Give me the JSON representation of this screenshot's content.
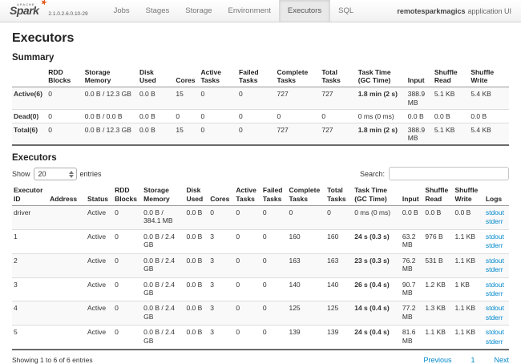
{
  "navbar": {
    "logo": {
      "apache": "APACHE",
      "name": "Spark",
      "version": "2.1.0.2.6.0.10-29"
    },
    "tabs": [
      {
        "label": "Jobs",
        "active": false
      },
      {
        "label": "Stages",
        "active": false
      },
      {
        "label": "Storage",
        "active": false
      },
      {
        "label": "Environment",
        "active": false
      },
      {
        "label": "Executors",
        "active": true
      },
      {
        "label": "SQL",
        "active": false
      }
    ],
    "app_name": "remotesparkmagics",
    "app_suffix": "application UI"
  },
  "page_title": "Executors",
  "summary": {
    "heading": "Summary",
    "columns": [
      "",
      "RDD Blocks",
      "Storage Memory",
      "Disk Used",
      "Cores",
      "Active Tasks",
      "Failed Tasks",
      "Complete Tasks",
      "Total Tasks",
      "Task Time (GC Time)",
      "Input",
      "Shuffle Read",
      "Shuffle Write"
    ],
    "rows": [
      {
        "label": "Active(6)",
        "cells": [
          "0",
          "0.0 B / 12.3 GB",
          "0.0 B",
          "15",
          "0",
          "0",
          "727",
          "727",
          "1.8 min (2 s)",
          "388.9 MB",
          "5.1 KB",
          "5.4 KB"
        ],
        "time_bold": true
      },
      {
        "label": "Dead(0)",
        "cells": [
          "0",
          "0.0 B / 0.0 B",
          "0.0 B",
          "0",
          "0",
          "0",
          "0",
          "0",
          "0 ms (0 ms)",
          "0.0 B",
          "0.0 B",
          "0.0 B"
        ],
        "time_bold": false
      },
      {
        "label": "Total(6)",
        "cells": [
          "0",
          "0.0 B / 12.3 GB",
          "0.0 B",
          "15",
          "0",
          "0",
          "727",
          "727",
          "1.8 min (2 s)",
          "388.9 MB",
          "5.1 KB",
          "5.4 KB"
        ],
        "time_bold": true
      }
    ]
  },
  "executors": {
    "heading": "Executors",
    "show_label": "Show",
    "page_size": "20",
    "entries_label": "entries",
    "search_label": "Search:",
    "search_value": "",
    "columns": [
      "Executor ID",
      "Address",
      "Status",
      "RDD Blocks",
      "Storage Memory",
      "Disk Used",
      "Cores",
      "Active Tasks",
      "Failed Tasks",
      "Complete Tasks",
      "Total Tasks",
      "Task Time (GC Time)",
      "Input",
      "Shuffle Read",
      "Shuffle Write",
      "Logs"
    ],
    "rows": [
      {
        "cells": [
          "driver",
          "",
          "Active",
          "0",
          "0.0 B / 384.1 MB",
          "0.0 B",
          "0",
          "0",
          "0",
          "0",
          "0",
          "0 ms (0 ms)",
          "0.0 B",
          "0.0 B",
          "0.0 B"
        ],
        "logs": [
          "stdout",
          "stderr"
        ],
        "time_bold": false
      },
      {
        "cells": [
          "1",
          "",
          "Active",
          "0",
          "0.0 B / 2.4 GB",
          "0.0 B",
          "3",
          "0",
          "0",
          "160",
          "160",
          "24 s (0.3 s)",
          "63.2 MB",
          "976 B",
          "1.1 KB"
        ],
        "logs": [
          "stdout",
          "stderr"
        ],
        "time_bold": true
      },
      {
        "cells": [
          "2",
          "",
          "Active",
          "0",
          "0.0 B / 2.4 GB",
          "0.0 B",
          "3",
          "0",
          "0",
          "163",
          "163",
          "23 s (0.3 s)",
          "76.2 MB",
          "531 B",
          "1.1 KB"
        ],
        "logs": [
          "stdout",
          "stderr"
        ],
        "time_bold": true
      },
      {
        "cells": [
          "3",
          "",
          "Active",
          "0",
          "0.0 B / 2.4 GB",
          "0.0 B",
          "3",
          "0",
          "0",
          "140",
          "140",
          "26 s (0.4 s)",
          "90.7 MB",
          "1.2 KB",
          "1 KB"
        ],
        "logs": [
          "stdout",
          "stderr"
        ],
        "time_bold": true
      },
      {
        "cells": [
          "4",
          "",
          "Active",
          "0",
          "0.0 B / 2.4 GB",
          "0.0 B",
          "3",
          "0",
          "0",
          "125",
          "125",
          "14 s (0.4 s)",
          "77.2 MB",
          "1.3 KB",
          "1.1 KB"
        ],
        "logs": [
          "stdout",
          "stderr"
        ],
        "time_bold": true
      },
      {
        "cells": [
          "5",
          "",
          "Active",
          "0",
          "0.0 B / 2.4 GB",
          "0.0 B",
          "3",
          "0",
          "0",
          "139",
          "139",
          "24 s (0.4 s)",
          "81.6 MB",
          "1.1 KB",
          "1.1 KB"
        ],
        "logs": [
          "stdout",
          "stderr"
        ],
        "time_bold": true
      }
    ],
    "footer": {
      "info": "Showing 1 to 6 of 6 entries",
      "pagination": [
        "Previous",
        "1",
        "Next"
      ]
    }
  },
  "colors": {
    "link": "#0088cc",
    "accent_orange": "#e25a1c",
    "stripe": "#f9f9f9"
  }
}
